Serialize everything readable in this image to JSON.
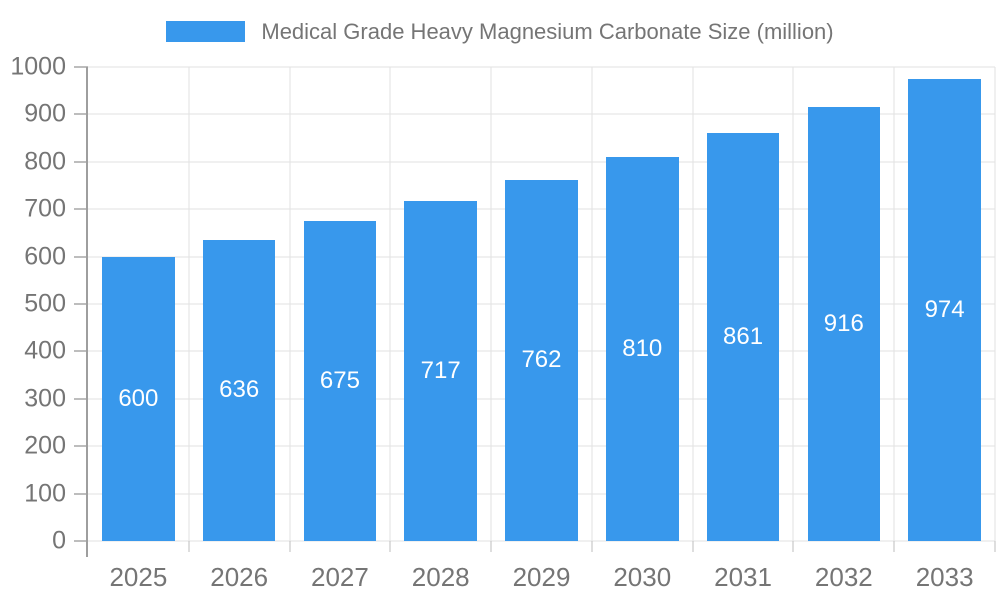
{
  "chart_data": {
    "type": "bar",
    "title": "Medical Grade Heavy Magnesium Carbonate Size (million)",
    "categories": [
      "2025",
      "2026",
      "2027",
      "2028",
      "2029",
      "2030",
      "2031",
      "2032",
      "2033"
    ],
    "values": [
      600,
      636,
      675,
      717,
      762,
      810,
      861,
      916,
      974
    ],
    "xlabel": "",
    "ylabel": "",
    "ylim": [
      0,
      1000
    ],
    "yticks": [
      0,
      100,
      200,
      300,
      400,
      500,
      600,
      700,
      800,
      900,
      1000
    ],
    "grid": true,
    "legend_position": "top-center",
    "value_label_position": "inside-center",
    "colors": {
      "bar": "#3898EC",
      "value_label": "#FFFFFF",
      "axis_text": "#757575",
      "grid_line": "#E2E2E2",
      "axis_line": "#9E9E9E",
      "tick": "#BDBDBD",
      "background": "#FFFFFF"
    }
  }
}
